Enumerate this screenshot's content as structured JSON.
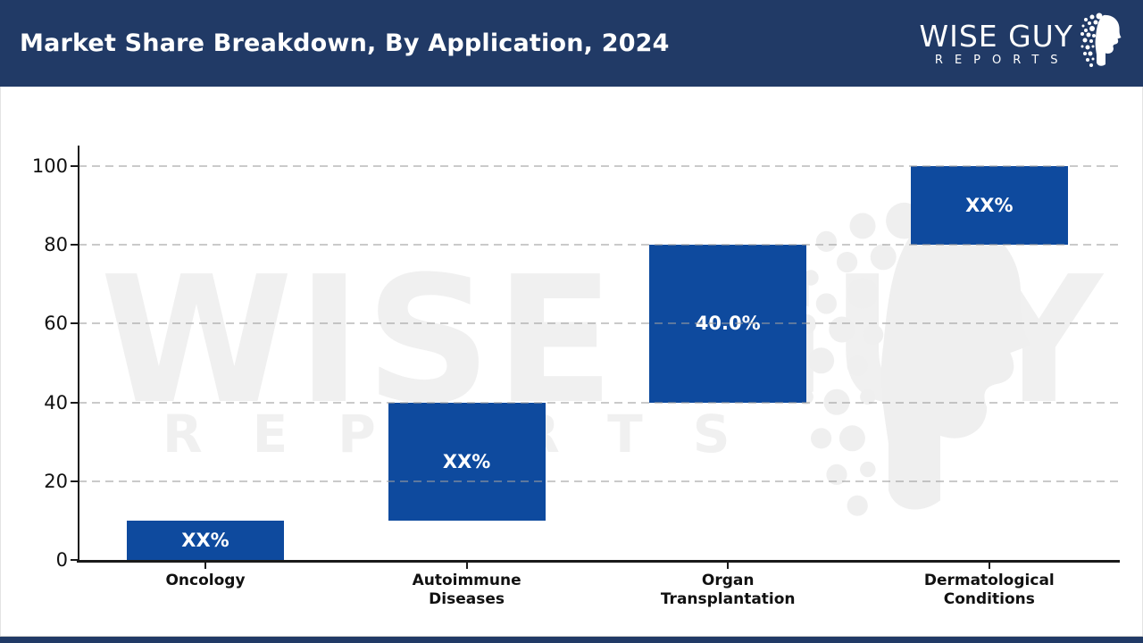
{
  "header": {
    "title": "Market Share Breakdown, By Application, 2024",
    "bg_color": "#213a66",
    "logo": {
      "line1": "WISE GUY",
      "line2": "REPORTS"
    }
  },
  "footer": {
    "bg_color": "#213a66"
  },
  "watermark": {
    "line1": "WISE GUY",
    "line2": "REPORTS"
  },
  "chart_data": {
    "type": "bar",
    "subtype": "waterfall",
    "title": "Market Share Breakdown, By Application, 2024",
    "categories": [
      [
        "Oncology"
      ],
      [
        "Autoimmune",
        "Diseases"
      ],
      [
        "Organ",
        "Transplantation"
      ],
      [
        "Dermatological",
        "Conditions"
      ]
    ],
    "segments": [
      {
        "start": 0,
        "end": 10,
        "value": 10,
        "label": "XX%"
      },
      {
        "start": 10,
        "end": 40,
        "value": 30,
        "label": "XX%"
      },
      {
        "start": 40,
        "end": 80,
        "value": 40,
        "label": "40.0%"
      },
      {
        "start": 80,
        "end": 100,
        "value": 20,
        "label": "XX%"
      }
    ],
    "ylabel": "",
    "xlabel": "",
    "yticks": [
      0,
      20,
      40,
      60,
      80,
      100
    ],
    "ylim": [
      0,
      105
    ],
    "grid": "horizontal-dashed",
    "legend": null,
    "bar_color": "#0e4a9e",
    "bar_label_color": "#ffffff"
  }
}
